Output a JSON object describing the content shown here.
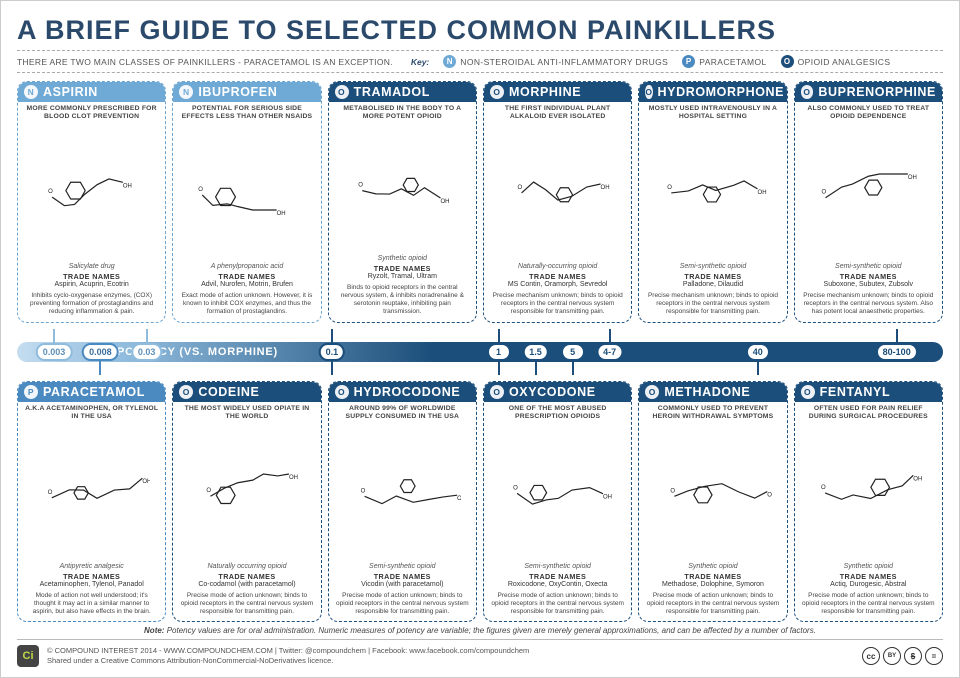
{
  "title": "A BRIEF GUIDE TO SELECTED COMMON PAINKILLERS",
  "subtitle": "THERE ARE TWO MAIN CLASSES OF PAINKILLERS - PARACETAMOL IS AN EXCEPTION.",
  "key_label": "Key:",
  "key": {
    "N": "NON-STEROIDAL ANTI-INFLAMMATORY DRUGS",
    "P": "PARACETAMOL",
    "O": "OPIOID ANALGESICS"
  },
  "potency_label": "POTENCY (VS. MORPHINE)",
  "potency_gradient": [
    "#c4dcef",
    "#8fbbdd",
    "#1b4e7a"
  ],
  "colors": {
    "nsaid": "#6fa9d6",
    "paracetamol": "#4a8ac1",
    "opioid": "#1b4e7a",
    "title_text": "#2b4a6b",
    "background": "#ffffff",
    "border_dash": "#6da4cf"
  },
  "trade_label": "TRADE NAMES",
  "cards_top": [
    {
      "code": "N",
      "name": "ASPIRIN",
      "tagline": "MORE COMMONLY PRESCRIBED FOR BLOOD CLOT PREVENTION",
      "drugclass": "Salicylate drug",
      "tradenames": "Aspirin, Acuprin, Ecotrin",
      "mechanism": "Inhibits cyclo-oxygenase enzymes, (COX) preventing formation of prostaglandins and reducing inflammation & pain.",
      "potency": "0.003",
      "potency_pos_pct": 4,
      "bubble_tone": "light"
    },
    {
      "code": "N",
      "name": "IBUPROFEN",
      "tagline": "POTENTIAL FOR SERIOUS SIDE EFFECTS LESS THAN OTHER NSAIDS",
      "drugclass": "A phenylpropanoic acid",
      "tradenames": "Advil, Nurofen, Motrin, Brufen",
      "mechanism": "Exact mode of action unknown. However, it is known to inhibit COX enzymes, and thus the formation of prostaglandins.",
      "potency": "0.03",
      "potency_pos_pct": 14,
      "bubble_tone": "light"
    },
    {
      "code": "O",
      "name": "TRAMADOL",
      "tagline": "METABOLISED IN THE BODY TO A MORE POTENT OPIOID",
      "drugclass": "Synthetic opioid",
      "tradenames": "Ryzolt, Tramal, Ultram",
      "mechanism": "Binds to opioid receptors in the central nervous system, & inhibits noradrenaline & serotonin reuptake, inhibiting pain transmission.",
      "potency": "0.1",
      "potency_pos_pct": 34,
      "bubble_tone": "dark"
    },
    {
      "code": "O",
      "name": "MORPHINE",
      "tagline": "THE FIRST INDIVIDUAL PLANT ALKALOID EVER ISOLATED",
      "drugclass": "Naturally-occurring opioid",
      "tradenames": "MS Contin, Oramorph, Sevredol",
      "mechanism": "Precise mechanism unknown; binds to opioid receptors in the central nervous system responsible for transmitting pain.",
      "potency": "1",
      "potency_pos_pct": 52,
      "bubble_tone": "dark"
    },
    {
      "code": "O",
      "name": "HYDROMORPHONE",
      "tagline": "MOSTLY USED INTRAVENOUSLY IN A HOSPITAL SETTING",
      "drugclass": "Semi-synthetic opioid",
      "tradenames": "Palladone, Dilaudid",
      "mechanism": "Precise mechanism unknown; binds to opioid receptors in the central nervous system responsible for transmitting pain.",
      "potency": "4-7",
      "potency_pos_pct": 64,
      "bubble_tone": "dark"
    },
    {
      "code": "O",
      "name": "BUPRENORPHINE",
      "tagline": "ALSO COMMONLY USED TO TREAT OPIOID DEPENDENCE",
      "drugclass": "Semi-synthetic opioid",
      "tradenames": "Suboxone, Subutex, Zubsolv",
      "mechanism": "Precise mechanism unknown; binds to opioid receptors in the central nervous system. Also has potent local anaesthetic properties.",
      "potency": "80-100",
      "potency_pos_pct": 95,
      "bubble_tone": "dark"
    }
  ],
  "cards_bottom": [
    {
      "code": "P",
      "name": "PARACETAMOL",
      "tagline": "A.K.A ACETAMINOPHEN, OR TYLENOL IN THE USA",
      "drugclass": "Antipyretic analgesic",
      "tradenames": "Acetaminophen, Tylenol, Panadol",
      "mechanism": "Mode of action not well understood; it's thought it may act in a similar manner to aspirin, but also have effects in the brain.",
      "potency": "0.008",
      "potency_pos_pct": 9,
      "bubble_tone": "mid"
    },
    {
      "code": "O",
      "name": "CODEINE",
      "tagline": "THE MOST WIDELY USED OPIATE IN THE WORLD",
      "drugclass": "Naturally occurring opioid",
      "tradenames": "Co-codamol (with paracetamol)",
      "mechanism": "Precise mode of action unknown; binds to opioid receptors in the central nervous system responsible for transmitting pain.",
      "potency": "0.1",
      "potency_pos_pct": 34,
      "bubble_tone": "dark"
    },
    {
      "code": "O",
      "name": "HYDROCODONE",
      "tagline": "AROUND 99% OF WORLDWIDE SUPPLY CONSUMED IN THE USA",
      "drugclass": "Semi-synthetic opioid",
      "tradenames": "Vicodin (with paracetamol)",
      "mechanism": "Precise mode of action unknown; binds to opioid receptors in the central nervous system responsible for transmitting pain.",
      "potency": "1",
      "potency_pos_pct": 52,
      "bubble_tone": "dark"
    },
    {
      "code": "O",
      "name": "OXYCODONE",
      "tagline": "ONE OF THE MOST ABUSED PRESCRIPTION OPIOIDS",
      "drugclass": "Semi-synthetic opioid",
      "tradenames": "Roxicodone, OxyContin, Oxecta",
      "mechanism": "Precise mode of action unknown; binds to opioid receptors in the central nervous system responsible for transmitting pain.",
      "potency": "1.5",
      "potency_pos_pct": 56,
      "bubble_tone": "dark"
    },
    {
      "code": "O",
      "name": "METHADONE",
      "tagline": "COMMONLY USED TO PREVENT HEROIN WITHDRAWAL SYMPTOMS",
      "drugclass": "Synthetic opioid",
      "tradenames": "Methadose, Dolophine, Symoron",
      "mechanism": "Precise mode of action unknown; binds to opioid receptors in the central nervous system responsible for transmitting pain.",
      "potency": "5",
      "potency_pos_pct": 60,
      "bubble_tone": "dark"
    },
    {
      "code": "O",
      "name": "FENTANYL",
      "tagline": "OFTEN USED FOR PAIN RELIEF DURING SURGICAL PROCEDURES",
      "drugclass": "Synthetic opioid",
      "tradenames": "Actiq, Durogesic, Abstral",
      "mechanism": "Precise mode of action unknown; binds to opioid receptors in the central nervous system responsible for transmitting pain.",
      "potency": "40",
      "potency_pos_pct": 80,
      "bubble_tone": "dark"
    }
  ],
  "note": "Potency values are for oral administration. Numeric measures of potency are variable; the figures given are merely general approximations, and can be affected by a number of factors.",
  "note_label": "Note:",
  "footer": {
    "line1": "© COMPOUND INTEREST 2014 - WWW.COMPOUNDCHEM.COM | Twitter: @compoundchem | Facebook: www.facebook.com/compoundchem",
    "line2": "Shared under a Creative Commons Attribution-NonCommercial-NoDerivatives licence.",
    "logo": "Ci",
    "cc_icons": [
      "CC",
      "BY",
      "NC",
      "ND"
    ],
    "cc_labels": [
      "cc",
      "①",
      "$",
      "="
    ]
  }
}
